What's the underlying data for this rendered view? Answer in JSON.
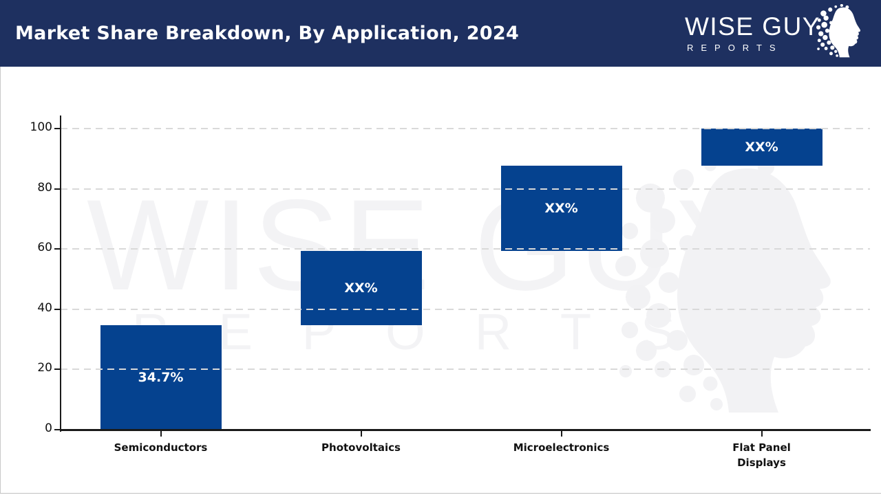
{
  "header": {
    "title": "Market Share Breakdown, By Application, 2024",
    "logo": {
      "wordmark": "WISE GUY",
      "subtext": "REPORTS"
    }
  },
  "watermark": {
    "wordmark": "WISE GUY",
    "subtext": "REPORTS"
  },
  "chart_data": {
    "type": "bar",
    "variant": "waterfall",
    "title": "Market Share Breakdown, By Application, 2024",
    "categories": [
      "Semiconductors",
      "Photovoltaics",
      "Microelectronics",
      "Flat Panel\nDisplays"
    ],
    "segments": [
      {
        "category": "Semiconductors",
        "start": 0,
        "end": 34.7,
        "label": "34.7%"
      },
      {
        "category": "Photovoltaics",
        "start": 34.7,
        "end": 59.3,
        "label": "XX%"
      },
      {
        "category": "Microelectronics",
        "start": 59.3,
        "end": 87.7,
        "label": "XX%"
      },
      {
        "category": "Flat Panel Displays",
        "start": 87.7,
        "end": 100,
        "label": "XX%"
      }
    ],
    "values": [
      34.7,
      24.6,
      28.4,
      12.3
    ],
    "xlabel": "",
    "ylabel": "",
    "ylim": [
      0,
      100
    ],
    "yticks": [
      0,
      20,
      40,
      60,
      80,
      100
    ],
    "grid": "horizontal-dashed",
    "legend": "none",
    "bar_color": "#05428f"
  },
  "colors": {
    "header_bg": "#1e3060",
    "bar": "#05428f",
    "bar_label_text": "#ffffff",
    "watermark": "#f2f2f4",
    "grid": "#d9d9d9",
    "axis": "#1a1a1a"
  }
}
